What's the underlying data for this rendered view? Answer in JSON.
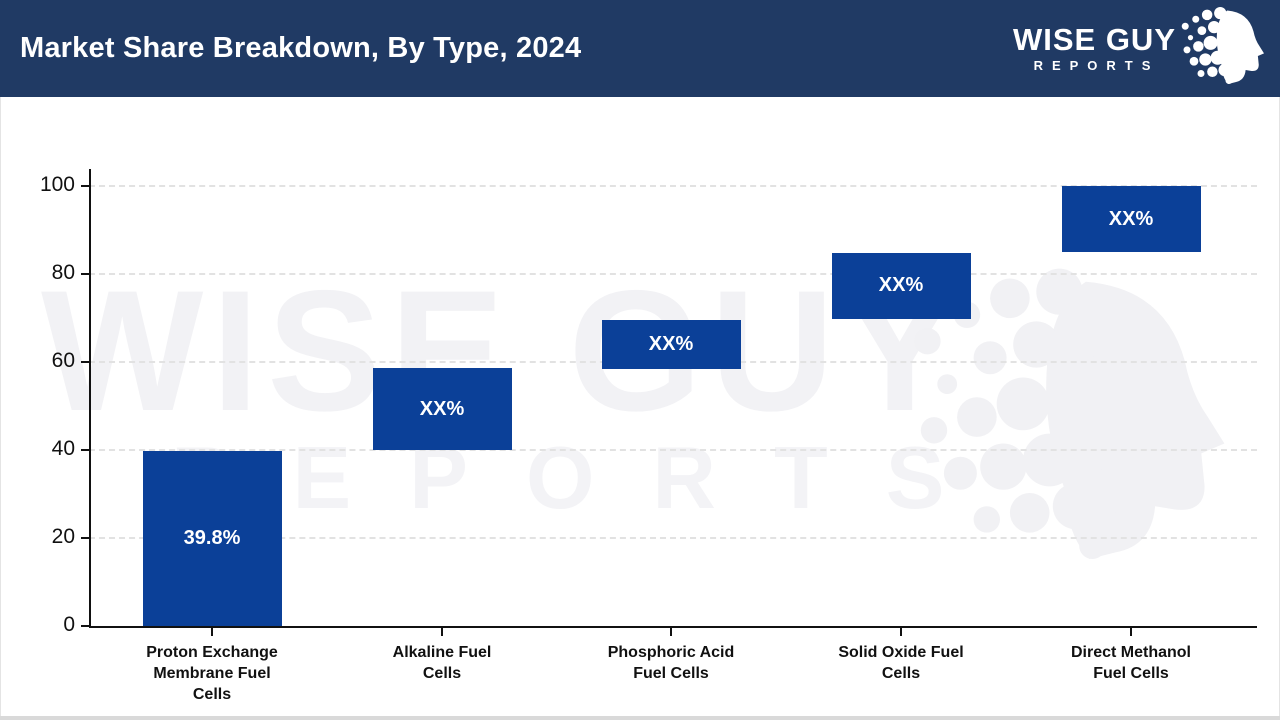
{
  "header": {
    "title": "Market Share Breakdown, By Type, 2024",
    "bg_color": "#203a64",
    "logo": {
      "line1": "WISE GUY",
      "line2": "REPORTS"
    }
  },
  "watermark": {
    "line1": "WISE GUY",
    "line2": "REPORTS"
  },
  "chart_data": {
    "type": "bar",
    "variant": "waterfall",
    "title": "Market Share Breakdown, By Type, 2024",
    "categories": [
      "Proton Exchange Membrane Fuel Cells",
      "Alkaline Fuel Cells",
      "Phosphoric Acid Fuel Cells",
      "Solid Oxide Fuel Cells",
      "Direct Methanol Fuel Cells"
    ],
    "category_lines": [
      [
        "Proton Exchange",
        "Membrane Fuel",
        "Cells"
      ],
      [
        "Alkaline Fuel",
        "Cells"
      ],
      [
        "Phosphoric Acid",
        "Fuel Cells"
      ],
      [
        "Solid Oxide Fuel",
        "Cells"
      ],
      [
        "Direct Methanol",
        "Fuel Cells"
      ]
    ],
    "segments": [
      {
        "start": 0,
        "end": 39.8,
        "label": "39.8%"
      },
      {
        "start": 40.0,
        "end": 58.6,
        "label": "XX%"
      },
      {
        "start": 58.5,
        "end": 69.5,
        "label": "XX%"
      },
      {
        "start": 69.8,
        "end": 84.8,
        "label": "XX%"
      },
      {
        "start": 84.9,
        "end": 100,
        "label": "XX%"
      }
    ],
    "xlabel": "",
    "ylabel": "",
    "ylim": [
      0,
      100
    ],
    "yticks": [
      0,
      20,
      40,
      60,
      80,
      100
    ],
    "grid": "horizontal-dashed",
    "legend": "none",
    "bar_color": "#0b4098",
    "bar_label_color": "#ffffff"
  }
}
